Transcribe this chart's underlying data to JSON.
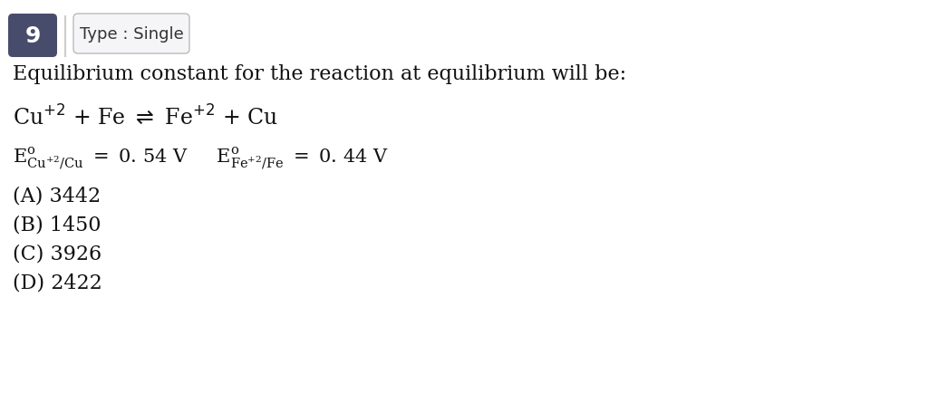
{
  "question_number": "9",
  "question_type": "Type : Single",
  "background_color": "#ffffff",
  "badge_color": "#484c6c",
  "badge_text_color": "#ffffff",
  "main_text": "Equilibrium constant for the reaction at equilibrium will be:",
  "options": [
    "(A) 3442",
    "(B) 1450",
    "(C) 3926",
    "(D) 2422"
  ],
  "font_size_main": 16,
  "font_size_options": 16,
  "font_size_badge": 18,
  "font_size_type": 13,
  "font_size_reaction": 17,
  "font_size_ecell": 15,
  "line_color": "#cccccc",
  "type_border_color": "#bbbbbb",
  "text_color": "#111111"
}
